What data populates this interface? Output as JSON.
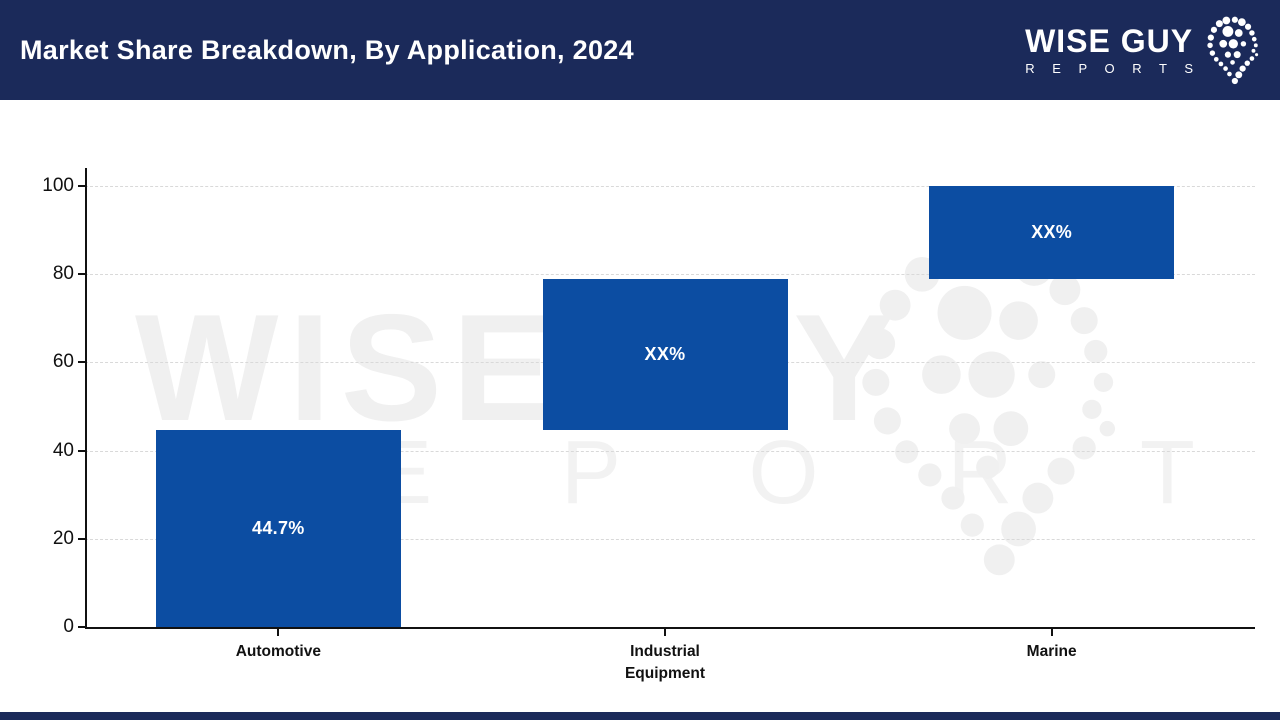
{
  "header": {
    "title": "Market Share Breakdown, By Application, 2024",
    "brand_line1": "WISE GUY",
    "brand_line2": "R E P O R T S"
  },
  "watermark": {
    "line1": "WISE G Y",
    "line2": "R E P O R T S"
  },
  "colors": {
    "header_bg": "#1b2a5a",
    "bar": "#0c4da2",
    "grid": "#d9d9d9",
    "axis": "#111111",
    "watermark": "#f0f0f0"
  },
  "chart_data": {
    "type": "bar",
    "variant": "waterfall-floating-bars",
    "title": "Market Share Breakdown, By Application, 2024",
    "categories": [
      "Automotive",
      "Industrial Equipment",
      "Marine"
    ],
    "segments": [
      {
        "category": "Automotive",
        "start": 0,
        "end": 44.7,
        "label": "44.7%"
      },
      {
        "category": "Industrial Equipment",
        "start": 44.7,
        "end": 78.8,
        "label": "XX%"
      },
      {
        "category": "Marine",
        "start": 78.8,
        "end": 100,
        "label": "XX%"
      }
    ],
    "value_labels": [
      "44.7%",
      "XX%",
      "XX%"
    ],
    "ylim": [
      0,
      100
    ],
    "yticks": [
      0,
      20,
      40,
      60,
      80,
      100
    ],
    "grid": {
      "horizontal": true,
      "style": "dashed",
      "color": "#d9d9d9"
    },
    "legend": "none",
    "bar_color": "#0c4da2",
    "bar_label_color": "#ffffff"
  }
}
